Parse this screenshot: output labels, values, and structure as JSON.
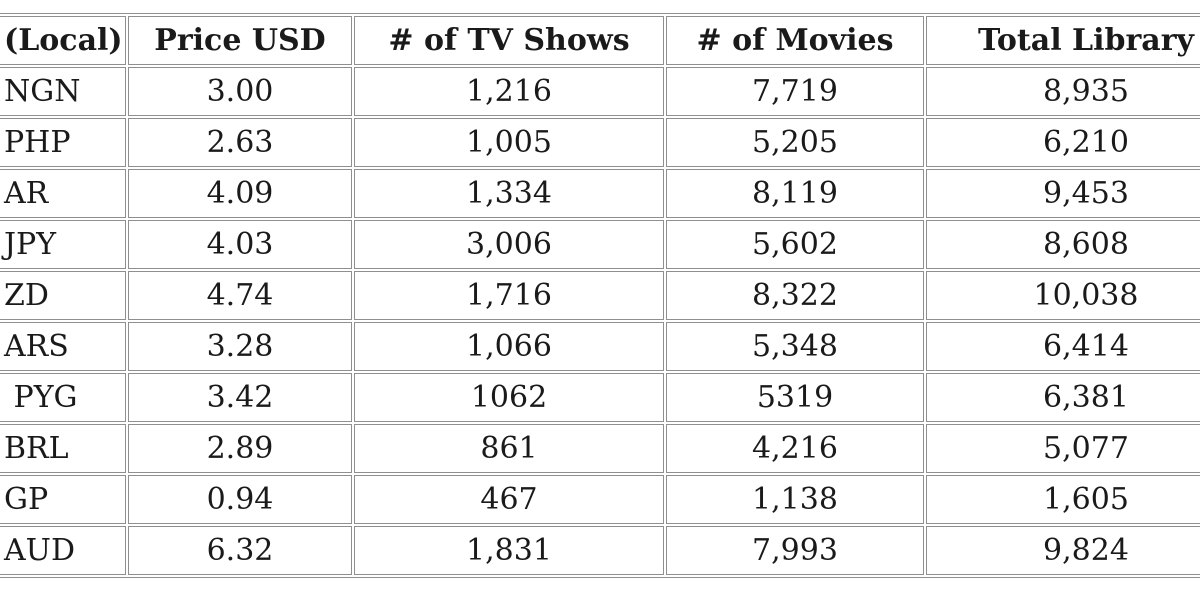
{
  "chart_data": {
    "type": "table",
    "columns": [
      "(Local)",
      "Price USD",
      "# of TV Shows",
      "# of Movies",
      "Total Library"
    ],
    "rows": [
      [
        "NGN",
        "3.00",
        "1,216",
        "7,719",
        "8,935"
      ],
      [
        "PHP",
        "2.63",
        "1,005",
        "5,205",
        "6,210"
      ],
      [
        "AR",
        "4.09",
        "1,334",
        "8,119",
        "9,453"
      ],
      [
        "JPY",
        "4.03",
        "3,006",
        "5,602",
        "8,608"
      ],
      [
        "ZD",
        "4.74",
        "1,716",
        "8,322",
        "10,038"
      ],
      [
        "ARS",
        "3.28",
        "1,066",
        "5,348",
        "6,414"
      ],
      [
        " PYG",
        "3.42",
        "1062",
        "5319",
        "6,381"
      ],
      [
        "BRL",
        "2.89",
        "861",
        "4,216",
        "5,077"
      ],
      [
        "GP",
        "0.94",
        "467",
        "1,138",
        "1,605"
      ],
      [
        "AUD",
        "6.32",
        "1,831",
        "7,993",
        "9,824"
      ]
    ],
    "layout_hints": "table cropped at left and right image edges; grid of gray double borders; white background"
  },
  "colors": {
    "background": "#ffffff",
    "border": "#8f8f8f",
    "text": "#1a1a1a"
  }
}
